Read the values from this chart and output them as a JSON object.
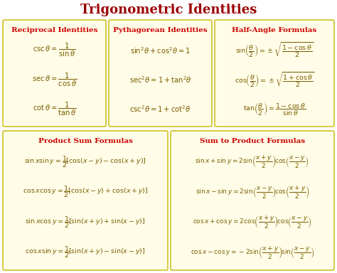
{
  "title": "Trigonometric Identities",
  "title_color": "#9b0000",
  "title_fontsize": 13,
  "bg_color": "#ffffff",
  "box_color": "#fffde7",
  "box_edge_color": "#c8b400",
  "header_color": "#cc0000",
  "text_color": "#7a5c00",
  "header_fontsize": 7.5,
  "box1_title": "Reciprocal Identities",
  "box1_formulas": [
    "$\\csc\\theta = \\dfrac{1}{\\sin\\theta}$",
    "$\\sec\\theta = \\dfrac{1}{\\cos\\theta}$",
    "$\\cot\\theta = \\dfrac{1}{\\tan\\theta}$"
  ],
  "box2_title": "Pythagorean Identities",
  "box2_formulas": [
    "$\\sin^2\\!\\theta + \\cos^2\\!\\theta = 1$",
    "$\\sec^2\\!\\theta = 1 + \\tan^2\\!\\theta$",
    "$\\csc^2\\!\\theta = 1 + \\cot^2\\!\\theta$"
  ],
  "box3_title": "Half-Angle Formulas",
  "box3_formulas": [
    "$\\sin\\!\\left(\\dfrac{\\theta}{2}\\right) = \\pm\\sqrt{\\dfrac{1-\\cos\\theta}{2}}$",
    "$\\cos\\!\\left(\\dfrac{\\theta}{2}\\right) = \\pm\\sqrt{\\dfrac{1+\\cos\\theta}{2}}$",
    "$\\tan\\!\\left(\\dfrac{\\theta}{2}\\right) = \\dfrac{1-\\cos\\theta}{\\sin\\theta}$"
  ],
  "box4_title": "Product Sum Formulas",
  "box4_formulas": [
    "$\\sin x\\sin y = \\dfrac{1}{2}\\!\\left[\\cos(x-y) - \\cos(x+y)\\right]$",
    "$\\cos x\\cos y = \\dfrac{1}{2}\\!\\left[\\cos(x-y) + \\cos(x+y)\\right]$",
    "$\\sin x\\cos y = \\dfrac{1}{2}\\!\\left[\\sin(x+y) + \\sin(x-y)\\right]$",
    "$\\cos x\\sin y = \\dfrac{1}{2}\\!\\left[\\sin(x+y) - \\sin(x-y)\\right]$"
  ],
  "box5_title": "Sum to Product Formulas",
  "box5_formulas": [
    "$\\sin x + \\sin y = 2\\sin\\!\\left(\\dfrac{x+y}{2}\\right)\\!\\cos\\!\\left(\\dfrac{x-y}{2}\\right)$",
    "$\\sin x - \\sin y = 2\\sin\\!\\left(\\dfrac{x-y}{2}\\right)\\!\\cos\\!\\left(\\dfrac{x+y}{2}\\right)$",
    "$\\cos x + \\cos y = 2\\cos\\!\\left(\\dfrac{x+y}{2}\\right)\\!\\cos\\!\\left(\\dfrac{x-y}{2}\\right)$",
    "$\\cos x - \\cos y = -2\\sin\\!\\left(\\dfrac{x+y}{2}\\right)\\!\\sin\\!\\left(\\dfrac{x-y}{2}\\right)$"
  ]
}
